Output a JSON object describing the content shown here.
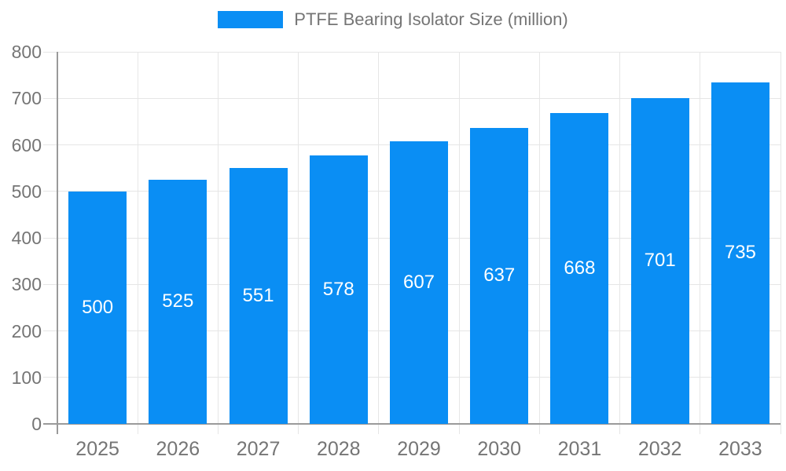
{
  "chart_data": {
    "type": "bar",
    "title": "PTFE Bearing Isolator Size (million)",
    "legend": {
      "label": "PTFE Bearing Isolator Size (million)",
      "position": "top"
    },
    "categories": [
      "2025",
      "2026",
      "2027",
      "2028",
      "2029",
      "2030",
      "2031",
      "2032",
      "2033"
    ],
    "values": [
      500,
      525,
      551,
      578,
      607,
      637,
      668,
      701,
      735
    ],
    "xlabel": "",
    "ylabel": "",
    "ylim": [
      0,
      800
    ],
    "ytick_step": 100,
    "ytick_labels": [
      "0",
      "100",
      "200",
      "300",
      "400",
      "500",
      "600",
      "700",
      "800"
    ],
    "grid": true,
    "value_labels_inside_bars": true
  },
  "colors": {
    "bar": "#0a8ef4",
    "value_label": "#ffffff",
    "axis_text": "#757575",
    "axis_line": "#9a9a9a",
    "gridline": "#e6e6e6",
    "background": "#ffffff"
  }
}
